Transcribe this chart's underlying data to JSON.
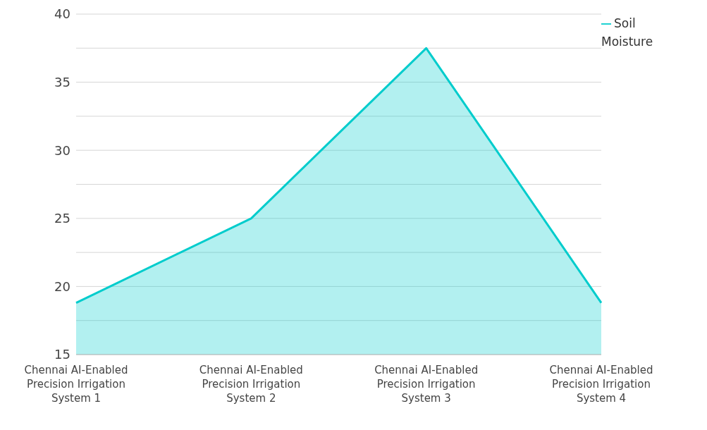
{
  "chart_data": {
    "type": "area",
    "categories": [
      "Chennai AI-Enabled Precision Irrigation System 1",
      "Chennai AI-Enabled Precision Irrigation System 2",
      "Chennai AI-Enabled Precision Irrigation System 3",
      "Chennai AI-Enabled Precision Irrigation System 4"
    ],
    "series": [
      {
        "name": "Soil Moisture",
        "color": "#00cccc",
        "values": [
          18.8,
          25,
          37.5,
          18.8
        ]
      }
    ],
    "ylim": [
      15,
      40
    ],
    "yticks": [
      15,
      {
        "value": 17.5,
        "label": null
      },
      20,
      {
        "value": 22.5,
        "label": null
      },
      25,
      {
        "value": 27.5,
        "label": null
      },
      30,
      {
        "value": 32.5,
        "label": null
      },
      35,
      {
        "value": 37.5,
        "label": null
      },
      40
    ],
    "grid": "y",
    "legend": "top right"
  }
}
